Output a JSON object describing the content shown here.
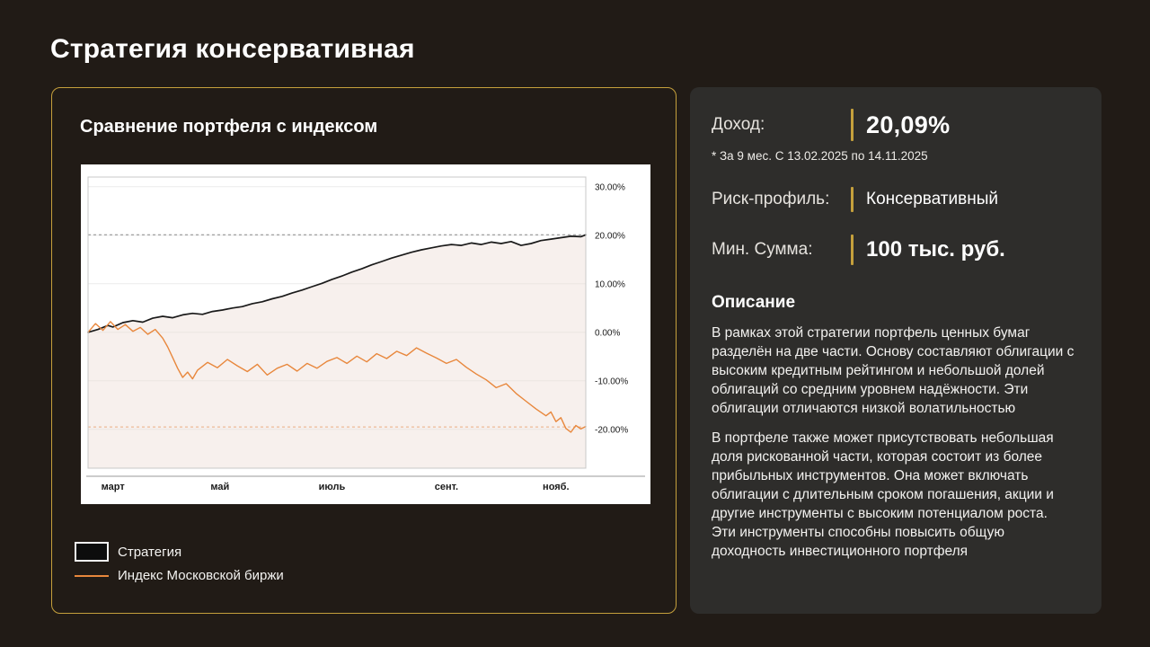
{
  "page": {
    "title": "Стратегия консервативная"
  },
  "colors": {
    "background": "#211B16",
    "accent_gold": "#C5A03C",
    "info_card_background": "#2E2D2B",
    "strategy_line": "#1A1A1A",
    "index_line": "#E8873C",
    "chart_background": "#FFFFFF"
  },
  "chart_card": {
    "heading": "Сравнение портфеля с индексом"
  },
  "chart_data": {
    "type": "line",
    "title": "Сравнение портфеля с индексом",
    "x_tick_labels": [
      "март",
      "май",
      "июль",
      "сент.",
      "нояб."
    ],
    "x_tick_positions": [
      0.05,
      0.265,
      0.49,
      0.72,
      0.94
    ],
    "y_ticks": [
      30,
      20,
      10,
      0,
      -10,
      -20
    ],
    "y_tick_labels": [
      "30.00%",
      "20.00%",
      "10.00%",
      "0.00%",
      "-10.00%",
      "-20.00%"
    ],
    "ylim": [
      -28,
      32
    ],
    "grid": true,
    "legend_position": "below-left",
    "series": [
      {
        "name": "Стратегия",
        "color": "#1A1A1A",
        "final_value_pct": 20.09,
        "x": [
          0,
          0.02,
          0.04,
          0.05,
          0.07,
          0.09,
          0.11,
          0.13,
          0.15,
          0.17,
          0.19,
          0.21,
          0.23,
          0.25,
          0.27,
          0.29,
          0.31,
          0.33,
          0.35,
          0.37,
          0.39,
          0.41,
          0.43,
          0.45,
          0.47,
          0.49,
          0.51,
          0.53,
          0.55,
          0.57,
          0.59,
          0.61,
          0.63,
          0.65,
          0.67,
          0.69,
          0.71,
          0.73,
          0.75,
          0.77,
          0.79,
          0.81,
          0.83,
          0.85,
          0.87,
          0.89,
          0.91,
          0.93,
          0.95,
          0.97,
          0.99,
          1
        ],
        "y": [
          0,
          0.6,
          1.4,
          1.1,
          2.0,
          2.4,
          2.1,
          2.9,
          3.3,
          3.0,
          3.6,
          3.9,
          3.7,
          4.3,
          4.6,
          5.0,
          5.3,
          5.9,
          6.3,
          6.9,
          7.4,
          8.1,
          8.7,
          9.4,
          10.1,
          10.9,
          11.6,
          12.4,
          13.1,
          13.9,
          14.6,
          15.3,
          15.9,
          16.5,
          17.0,
          17.4,
          17.8,
          18.1,
          17.9,
          18.4,
          18.1,
          18.6,
          18.3,
          18.7,
          17.9,
          18.3,
          18.9,
          19.2,
          19.5,
          19.8,
          19.7,
          20.09
        ]
      },
      {
        "name": "Индекс Московской биржи",
        "color": "#E8873C",
        "final_value_pct": -19.4,
        "x": [
          0,
          0.015,
          0.03,
          0.045,
          0.06,
          0.075,
          0.09,
          0.105,
          0.12,
          0.135,
          0.15,
          0.16,
          0.17,
          0.18,
          0.19,
          0.2,
          0.21,
          0.22,
          0.24,
          0.26,
          0.28,
          0.3,
          0.32,
          0.34,
          0.36,
          0.38,
          0.4,
          0.42,
          0.44,
          0.46,
          0.48,
          0.5,
          0.52,
          0.54,
          0.56,
          0.58,
          0.6,
          0.62,
          0.64,
          0.66,
          0.68,
          0.7,
          0.72,
          0.74,
          0.76,
          0.78,
          0.8,
          0.82,
          0.84,
          0.86,
          0.88,
          0.9,
          0.92,
          0.93,
          0.94,
          0.95,
          0.96,
          0.97,
          0.98,
          0.99,
          1
        ],
        "y": [
          0,
          1.8,
          0.4,
          2.2,
          0.6,
          1.6,
          0.2,
          1.0,
          -0.4,
          0.6,
          -1.2,
          -3.0,
          -5.2,
          -7.4,
          -9.3,
          -8.2,
          -9.6,
          -7.8,
          -6.2,
          -7.3,
          -5.6,
          -6.9,
          -8.1,
          -6.6,
          -8.8,
          -7.4,
          -6.6,
          -8.0,
          -6.4,
          -7.4,
          -6.0,
          -5.2,
          -6.4,
          -4.9,
          -6.1,
          -4.4,
          -5.4,
          -3.9,
          -4.8,
          -3.2,
          -4.3,
          -5.3,
          -6.4,
          -5.6,
          -7.2,
          -8.6,
          -9.8,
          -11.4,
          -10.6,
          -12.6,
          -14.2,
          -15.8,
          -17.2,
          -16.4,
          -18.4,
          -17.6,
          -19.8,
          -20.6,
          -19.2,
          -19.9,
          -19.4
        ]
      }
    ],
    "reference_lines": [
      {
        "value": 20.09,
        "color": "#8a8a8a",
        "style": "dashed"
      },
      {
        "value": -19.5,
        "color": "#E8873C",
        "style": "dashed"
      }
    ]
  },
  "info_card": {
    "income_label": "Доход:",
    "income_value": "20,09%",
    "income_note": "* За 9 мес. С 13.02.2025 по 14.11.2025",
    "risk_label": "Риск-профиль:",
    "risk_value": "Консервативный",
    "min_label": "Мин. Сумма:",
    "min_value": "100 тыс. руб.",
    "description_title": "Описание",
    "description_paragraphs": [
      "В рамках этой стратегии портфель ценных бумаг разделён на две части. Основу составляют облигации с высоким кредитным рейтингом и небольшой долей облигаций со средним уровнем надёжности. Эти облигации отличаются низкой волатильностью",
      "В портфеле также может присутствовать небольшая доля рискованной части, которая состоит из более прибыльных инструментов. Она может включать облигации с длительным сроком погашения, акции и другие инструменты с высоким потенциалом роста. Эти инструменты способны повысить общую доходность инвестиционного портфеля"
    ]
  }
}
